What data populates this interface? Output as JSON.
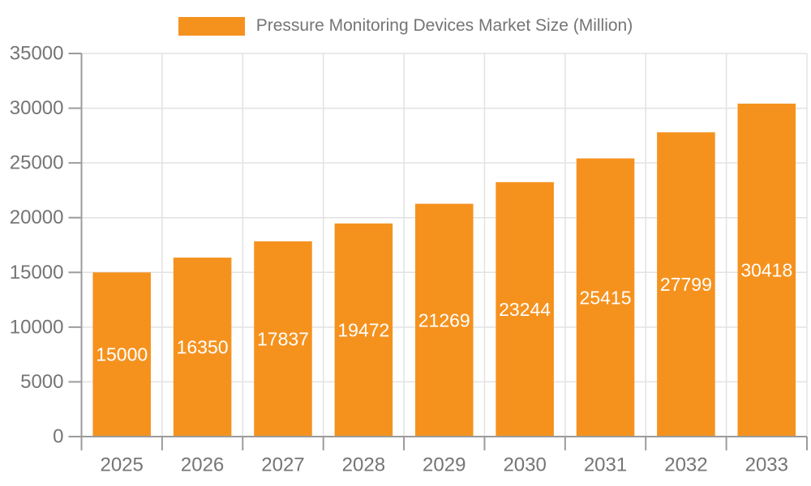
{
  "legend": {
    "label": "Pressure Monitoring Devices Market Size (Million)"
  },
  "chart_data": {
    "type": "bar",
    "title": "Pressure Monitoring Devices Market Size (Million)",
    "categories": [
      "2025",
      "2026",
      "2027",
      "2028",
      "2029",
      "2030",
      "2031",
      "2032",
      "2033"
    ],
    "values": [
      15000,
      16350,
      17837,
      19472,
      21269,
      23244,
      25415,
      27799,
      30418
    ],
    "xlabel": "",
    "ylabel": "",
    "ylim": [
      0,
      35000
    ],
    "yticks": [
      0,
      5000,
      10000,
      15000,
      20000,
      25000,
      30000,
      35000
    ],
    "grid": true,
    "legend_position": "top-center",
    "value_label_position": "inside-center",
    "colors": {
      "bar": "#f5921e",
      "value_label": "#ffffff",
      "axis": "#9b9b9b",
      "gridline": "#e2e2e2",
      "tick_label": "#757575",
      "legend_text": "#757575",
      "background": "#ffffff"
    }
  }
}
